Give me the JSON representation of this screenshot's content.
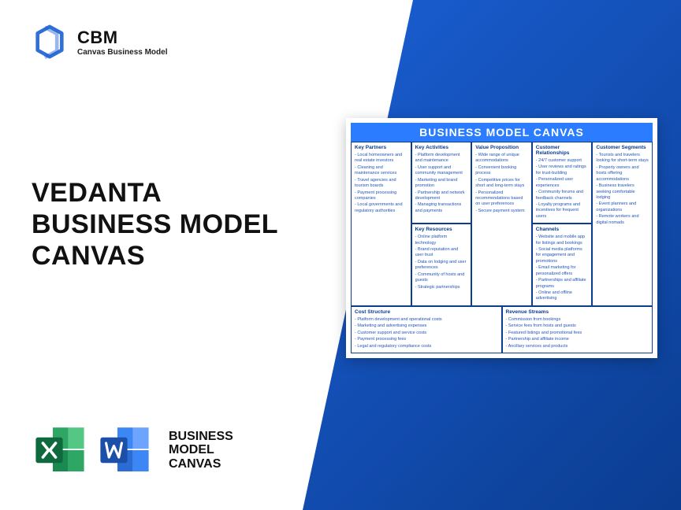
{
  "brand": {
    "title": "CBM",
    "subtitle": "Canvas Business Model",
    "logo_color": "#1a5fd4"
  },
  "main_title_line1": "VEDANTA",
  "main_title_line2": "BUSINESS MODEL",
  "main_title_line3": "CANVAS",
  "bottom_label_line1": "BUSINESS",
  "bottom_label_line2": "MODEL",
  "bottom_label_line3": "CANVAS",
  "excel_icon_colors": {
    "dark": "#0a6b3d",
    "mid": "#1a8a50",
    "light": "#2ea765",
    "pale": "#54c785",
    "badge": "#0e6a3c"
  },
  "word_icon_colors": {
    "dark": "#1b4fa8",
    "mid": "#2b6bd6",
    "light": "#3d86f5",
    "pale": "#6ca4ff",
    "badge": "#1b4fa8"
  },
  "diag_gradient": [
    "#1a5fd4",
    "#0b3d91"
  ],
  "canvas": {
    "header": "BUSINESS MODEL CANVAS",
    "header_bg": "#2b7cff",
    "border_color": "#0b3d91",
    "text_color": "#2255bb",
    "sections": {
      "key_partners": {
        "title": "Key Partners",
        "items": [
          "Local homeowners and real estate investors",
          "Cleaning and maintenance services",
          "Travel agencies and tourism boards",
          "Payment processing companies",
          "Local governments and regulatory authorities"
        ]
      },
      "key_activities": {
        "title": "Key Activities",
        "items": [
          "Platform development and maintenance",
          "User support and community management",
          "Marketing and brand promotion",
          "Partnership and network development",
          "Managing transactions and payments"
        ]
      },
      "key_resources": {
        "title": "Key Resources",
        "items": [
          "Online platform technology",
          "Brand reputation and user trust",
          "Data on lodging and user preferences",
          "Community of hosts and guests",
          "Strategic partnerships"
        ]
      },
      "value_proposition": {
        "title": "Value Proposition",
        "items": [
          "Wide range of unique accommodations",
          "Convenient booking process",
          "Competitive prices for short and long-term stays",
          "Personalized recommendations based on user preferences",
          "Secure payment system"
        ]
      },
      "customer_relationships": {
        "title": "Customer Relationships",
        "items": [
          "24/7 customer support",
          "User reviews and ratings for trust-building",
          "Personalized user experiences",
          "Community forums and feedback channels",
          "Loyalty programs and incentives for frequent users"
        ]
      },
      "channels": {
        "title": "Channels",
        "items": [
          "Website and mobile app for listings and bookings",
          "Social media platforms for engagement and promotions",
          "Email marketing for personalized offers",
          "Partnerships and affiliate programs",
          "Online and offline advertising"
        ]
      },
      "customer_segments": {
        "title": "Customer Segments",
        "items": [
          "Tourists and travelers looking for short-term stays",
          "Property owners and hosts offering accommodations",
          "Business travelers seeking comfortable lodging",
          "Event planners and organizations",
          "Remote workers and digital nomads"
        ]
      },
      "cost_structure": {
        "title": "Cost Structure",
        "items": [
          "Platform development and operational costs",
          "Marketing and advertising expenses",
          "Customer support and service costs",
          "Payment processing fees",
          "Legal and regulatory compliance costs"
        ]
      },
      "revenue_streams": {
        "title": "Revenue Streams",
        "items": [
          "Commission from bookings",
          "Service fees from hosts and guests",
          "Featured listings and promotional fees",
          "Partnership and affiliate income",
          "Ancillary services and products"
        ]
      }
    }
  }
}
